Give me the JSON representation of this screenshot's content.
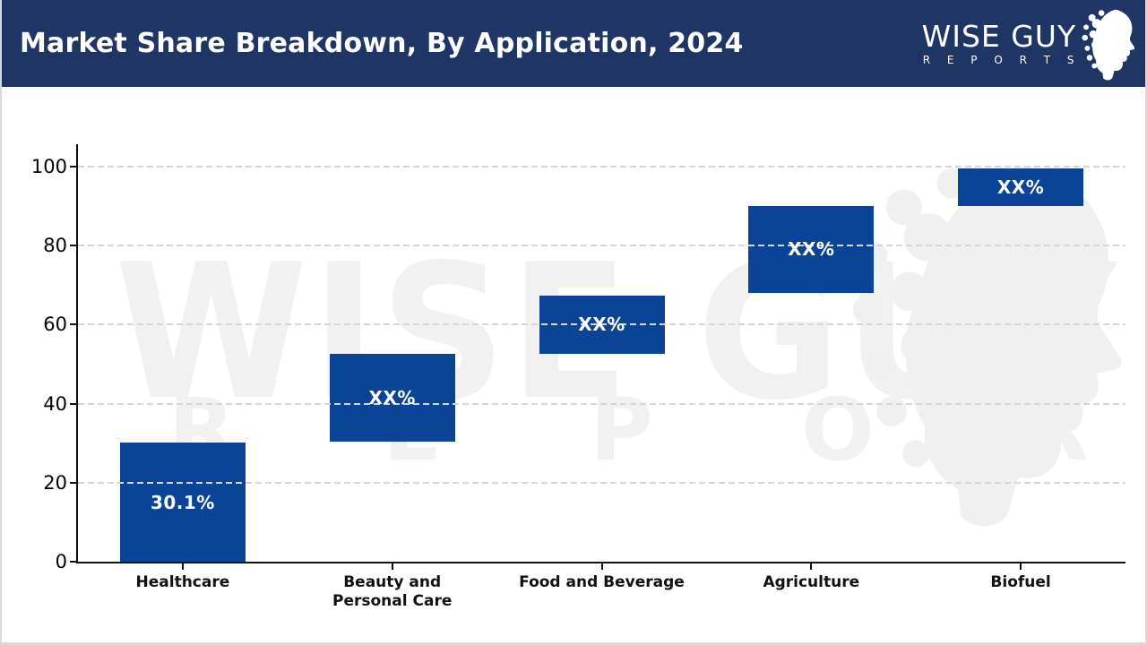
{
  "header": {
    "title": "Market Share Breakdown, By Application, 2024",
    "logo": {
      "line1": "WISE GUY",
      "line2": "R E P O R T S"
    }
  },
  "watermark": {
    "line1": "WISE GUY",
    "line2": "R E P O R T S"
  },
  "colors": {
    "header_bg": "#1f3565",
    "bar": "#0b4397",
    "axis": "#111111",
    "grid": "#d6d6d6",
    "bar_label": "#ffffff",
    "watermark": "#f1f1f1"
  },
  "chart_data": {
    "type": "bar",
    "subtype": "waterfall",
    "title": "Market Share Breakdown, By Application, 2024",
    "categories": [
      "Healthcare",
      "Beauty and\nPersonal Care",
      "Food and Beverage",
      "Agriculture",
      "Biofuel"
    ],
    "bars": [
      {
        "category": "Healthcare",
        "start": 0,
        "end": 30.1,
        "label": "30.1%"
      },
      {
        "category": "Beauty and Personal Care",
        "start": 30.3,
        "end": 52.5,
        "label": "XX%"
      },
      {
        "category": "Food and Beverage",
        "start": 52.7,
        "end": 67.3,
        "label": "XX%"
      },
      {
        "category": "Agriculture",
        "start": 68.1,
        "end": 90.0,
        "label": "XX%"
      },
      {
        "category": "Biofuel",
        "start": 90.0,
        "end": 99.5,
        "label": "XX%"
      }
    ],
    "yticks": [
      0,
      20,
      40,
      60,
      80,
      100
    ],
    "ylim": [
      0,
      105.2
    ],
    "xlabel": "",
    "ylabel": "",
    "grid": "horizontal-dashed",
    "legend": null,
    "bar_color": "#0b4397",
    "value_labels_inside_bars": true
  }
}
